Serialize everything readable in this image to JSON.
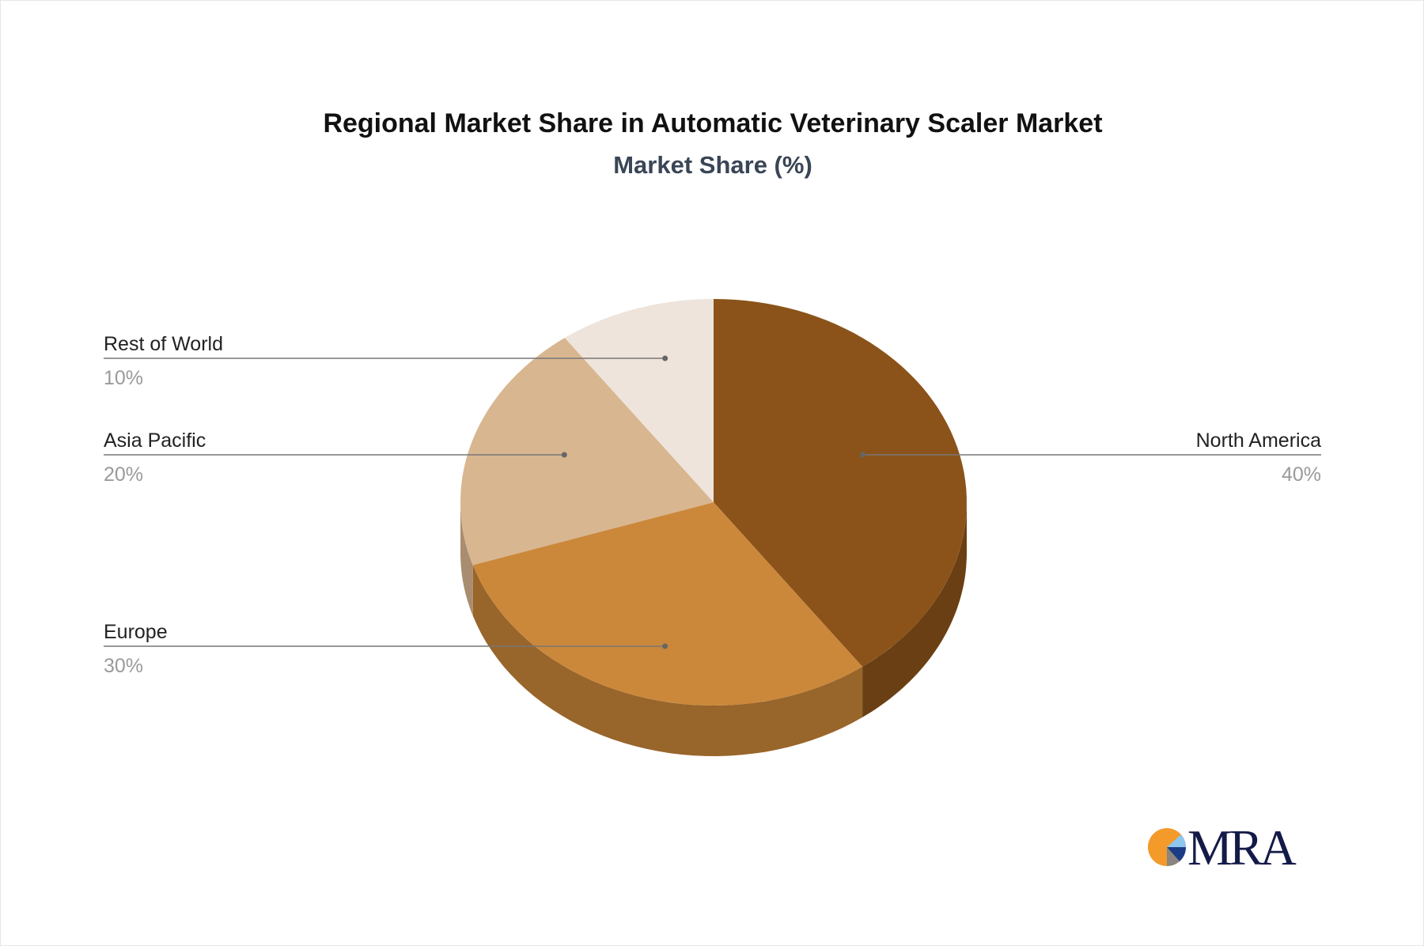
{
  "chart_data": {
    "type": "pie",
    "style": "3d",
    "title": "Regional Market Share in Automatic Veterinary Scaler Market",
    "subtitle": "Market Share (%)",
    "unit": "%",
    "start_angle": "top, clockwise",
    "slices": [
      {
        "label": "North America",
        "value": 40,
        "display": "40%",
        "color": "#8B5319",
        "side_color": "#6A3F13",
        "label_side": "right"
      },
      {
        "label": "Europe",
        "value": 30,
        "display": "30%",
        "color": "#CB883B",
        "side_color": "#98652B",
        "label_side": "left"
      },
      {
        "label": "Asia Pacific",
        "value": 20,
        "display": "20%",
        "color": "#D8B690",
        "side_color": "#A88D70",
        "label_side": "left"
      },
      {
        "label": "Rest of World",
        "value": 10,
        "display": "10%",
        "color": "#EEE4DB",
        "side_color": "#BDB3AA",
        "label_side": "left"
      }
    ]
  },
  "logo": {
    "logo_text": "MRA",
    "colors": [
      "#F39A2B",
      "#8DC6EE",
      "#1B3C84",
      "#8A8580"
    ]
  }
}
